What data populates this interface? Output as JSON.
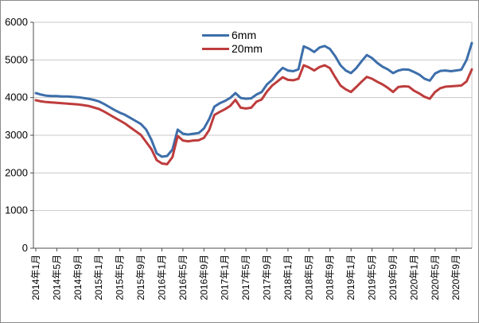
{
  "chart_data": {
    "type": "line",
    "title": "",
    "grid": true,
    "legend_position": "top-center",
    "ylim": [
      0,
      6000
    ],
    "ytick_step": 1000,
    "ytick_labels": [
      "0",
      "1000",
      "2000",
      "3000",
      "4000",
      "5000",
      "6000"
    ],
    "x_tick_interval_months": 4,
    "x_tick_labels": [
      "2014年1月",
      "2014年5月",
      "2014年9月",
      "2015年1月",
      "2015年5月",
      "2015年9月",
      "2016年1月",
      "2016年5月",
      "2016年9月",
      "2017年1月",
      "2017年5月",
      "2017年9月",
      "2018年1月",
      "2018年5月",
      "2018年9月",
      "2019年1月",
      "2019年5月",
      "2019年9月",
      "2020年1月",
      "2020年5月",
      "2020年9月"
    ],
    "x_start_label": "2014年1月",
    "points_per_series": 84,
    "colors": {
      "axis": "#4d4d4d",
      "gridline": "#c8c8c8",
      "background": "#ffffff"
    },
    "series": [
      {
        "name": "6mm",
        "color": "#3c6eaa",
        "values": [
          4120,
          4080,
          4050,
          4040,
          4040,
          4030,
          4030,
          4020,
          4010,
          3990,
          3970,
          3940,
          3900,
          3830,
          3750,
          3670,
          3600,
          3540,
          3460,
          3380,
          3300,
          3150,
          2880,
          2520,
          2430,
          2450,
          2620,
          3150,
          3040,
          3020,
          3040,
          3060,
          3180,
          3430,
          3760,
          3850,
          3910,
          3990,
          4120,
          3990,
          3970,
          3980,
          4080,
          4150,
          4350,
          4470,
          4650,
          4790,
          4720,
          4700,
          4750,
          5360,
          5300,
          5210,
          5330,
          5370,
          5290,
          5100,
          4860,
          4720,
          4650,
          4780,
          4960,
          5130,
          5050,
          4920,
          4820,
          4750,
          4650,
          4720,
          4750,
          4740,
          4680,
          4610,
          4500,
          4450,
          4640,
          4710,
          4720,
          4700,
          4720,
          4740,
          5000,
          5450
        ]
      },
      {
        "name": "20mm",
        "color": "#be3c3c",
        "values": [
          3930,
          3900,
          3880,
          3870,
          3860,
          3850,
          3840,
          3830,
          3820,
          3800,
          3780,
          3740,
          3700,
          3630,
          3550,
          3470,
          3390,
          3310,
          3210,
          3110,
          3010,
          2820,
          2630,
          2340,
          2250,
          2230,
          2420,
          2980,
          2860,
          2840,
          2860,
          2870,
          2930,
          3140,
          3540,
          3620,
          3690,
          3780,
          3940,
          3730,
          3710,
          3730,
          3890,
          3950,
          4160,
          4320,
          4430,
          4540,
          4470,
          4460,
          4500,
          4860,
          4800,
          4720,
          4810,
          4860,
          4780,
          4540,
          4320,
          4220,
          4150,
          4280,
          4420,
          4550,
          4500,
          4420,
          4350,
          4260,
          4150,
          4280,
          4300,
          4290,
          4180,
          4110,
          4020,
          3970,
          4150,
          4250,
          4290,
          4300,
          4310,
          4320,
          4430,
          4750
        ]
      }
    ]
  }
}
